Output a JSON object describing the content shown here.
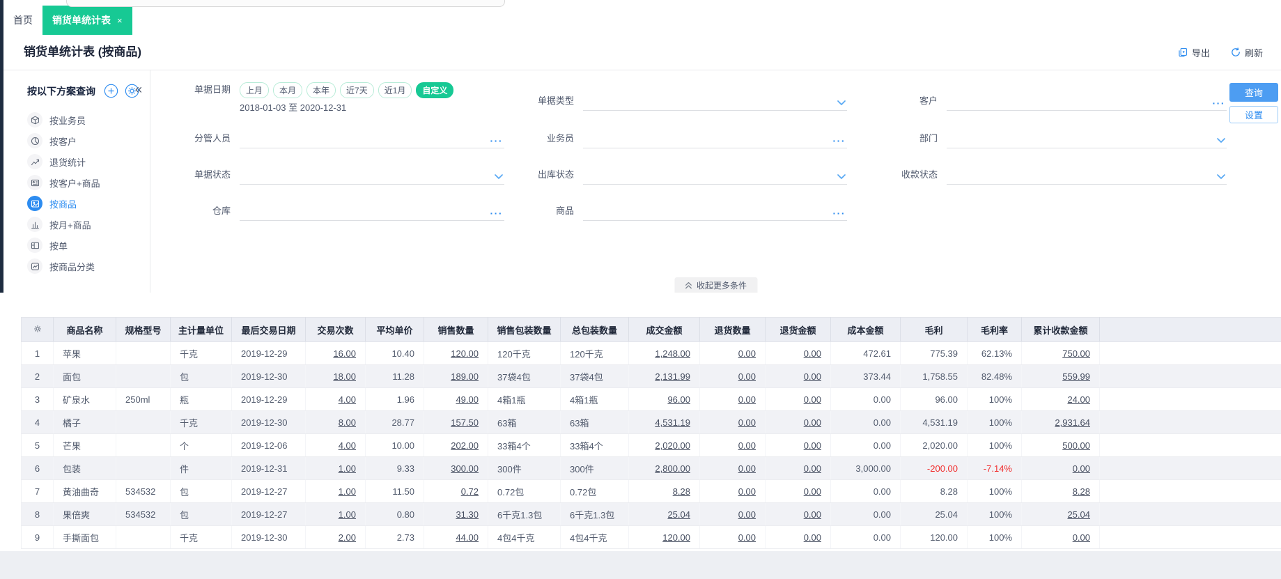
{
  "tab_bar": {
    "home_tab": "首页",
    "active_tab": "销货单统计表",
    "close_icon": "×"
  },
  "page": {
    "title": "销货单统计表 (按商品)",
    "export_label": "导出",
    "refresh_label": "刷新"
  },
  "sidebar": {
    "title": "按以下方案查询",
    "items": [
      {
        "key": "salesman",
        "label": "按业务员",
        "icon": "cube-icon",
        "active": false
      },
      {
        "key": "customer",
        "label": "按客户",
        "icon": "pie-chart-icon",
        "active": false
      },
      {
        "key": "returns-stats",
        "label": "退货统计",
        "icon": "trend-icon",
        "active": false
      },
      {
        "key": "customer-goods",
        "label": "按客户+商品",
        "icon": "id-card-icon",
        "active": false
      },
      {
        "key": "goods",
        "label": "按商品",
        "icon": "image-icon",
        "active": true
      },
      {
        "key": "month-goods",
        "label": "按月+商品",
        "icon": "bar-chart-icon",
        "active": false
      },
      {
        "key": "bill",
        "label": "按单",
        "icon": "layout-icon",
        "active": false
      },
      {
        "key": "goods-category",
        "label": "按商品分类",
        "icon": "line-chart-icon",
        "active": false
      }
    ]
  },
  "filters": {
    "date": {
      "label": "单据日期",
      "pills": [
        "上月",
        "本月",
        "本年",
        "近7天",
        "近1月"
      ],
      "custom_pill": "自定义",
      "range": "2018-01-03 至 2020-12-31"
    },
    "fields": [
      {
        "key": "manager",
        "label": "分管人员",
        "suffix": "ellipsis",
        "col": 1,
        "row": 2
      },
      {
        "key": "bill-status",
        "label": "单据状态",
        "suffix": "chevron",
        "col": 1,
        "row": 3
      },
      {
        "key": "warehouse",
        "label": "仓库",
        "suffix": "ellipsis",
        "col": 1,
        "row": 4
      },
      {
        "key": "bill-type",
        "label": "单据类型",
        "suffix": "chevron",
        "col": 2,
        "row": 1
      },
      {
        "key": "salesman",
        "label": "业务员",
        "suffix": "ellipsis",
        "col": 2,
        "row": 2
      },
      {
        "key": "outbound-status",
        "label": "出库状态",
        "suffix": "chevron",
        "col": 2,
        "row": 3
      },
      {
        "key": "goods",
        "label": "商品",
        "suffix": "ellipsis",
        "col": 2,
        "row": 4
      },
      {
        "key": "customer",
        "label": "客户",
        "suffix": "ellipsis",
        "col": 3,
        "row": 1
      },
      {
        "key": "department",
        "label": "部门",
        "suffix": "chevron",
        "col": 3,
        "row": 2
      },
      {
        "key": "payment-status",
        "label": "收款状态",
        "suffix": "chevron",
        "col": 3,
        "row": 3
      }
    ],
    "query_button": "查询",
    "settings_button": "设置",
    "collapse_label": "收起更多条件"
  },
  "table": {
    "columns": [
      {
        "key": "index",
        "label": "",
        "align": "center"
      },
      {
        "key": "goods-name",
        "label": "商品名称",
        "align": "left"
      },
      {
        "key": "spec",
        "label": "规格型号",
        "align": "left"
      },
      {
        "key": "unit",
        "label": "主计量单位",
        "align": "left"
      },
      {
        "key": "last-trade-date",
        "label": "最后交易日期",
        "align": "left"
      },
      {
        "key": "trade-count",
        "label": "交易次数",
        "align": "right",
        "link": true
      },
      {
        "key": "avg-price",
        "label": "平均单价",
        "align": "right"
      },
      {
        "key": "sales-qty",
        "label": "销售数量",
        "align": "right",
        "link": true
      },
      {
        "key": "sales-pack-qty",
        "label": "销售包装数量",
        "align": "left"
      },
      {
        "key": "total-pack-qty",
        "label": "总包装数量",
        "align": "left"
      },
      {
        "key": "deal-amount",
        "label": "成交金额",
        "align": "right",
        "link": true
      },
      {
        "key": "return-qty",
        "label": "退货数量",
        "align": "right",
        "link": true
      },
      {
        "key": "return-amount",
        "label": "退货金额",
        "align": "right",
        "link": true
      },
      {
        "key": "cost-amount",
        "label": "成本金额",
        "align": "right"
      },
      {
        "key": "gross-profit",
        "label": "毛利",
        "align": "right"
      },
      {
        "key": "gross-margin",
        "label": "毛利率",
        "align": "right"
      },
      {
        "key": "received-amount",
        "label": "累计收款金额",
        "align": "right",
        "link": true
      }
    ],
    "rows": [
      [
        "1",
        "苹果",
        "",
        "千克",
        "2019-12-29",
        "16.00",
        "10.40",
        "120.00",
        "120千克",
        "120千克",
        "1,248.00",
        "0.00",
        "0.00",
        "472.61",
        "775.39",
        "62.13%",
        "750.00"
      ],
      [
        "2",
        "面包",
        "",
        "包",
        "2019-12-30",
        "18.00",
        "11.28",
        "189.00",
        "37袋4包",
        "37袋4包",
        "2,131.99",
        "0.00",
        "0.00",
        "373.44",
        "1,758.55",
        "82.48%",
        "559.99"
      ],
      [
        "3",
        "矿泉水",
        "250ml",
        "瓶",
        "2019-12-29",
        "4.00",
        "1.96",
        "49.00",
        "4箱1瓶",
        "4箱1瓶",
        "96.00",
        "0.00",
        "0.00",
        "0.00",
        "96.00",
        "100%",
        "24.00"
      ],
      [
        "4",
        "橘子",
        "",
        "千克",
        "2019-12-30",
        "8.00",
        "28.77",
        "157.50",
        "63箱",
        "63箱",
        "4,531.19",
        "0.00",
        "0.00",
        "0.00",
        "4,531.19",
        "100%",
        "2,931.64"
      ],
      [
        "5",
        "芒果",
        "",
        "个",
        "2019-12-06",
        "4.00",
        "10.00",
        "202.00",
        "33箱4个",
        "33箱4个",
        "2,020.00",
        "0.00",
        "0.00",
        "0.00",
        "2,020.00",
        "100%",
        "500.00"
      ],
      [
        "6",
        "包装",
        "",
        "件",
        "2019-12-31",
        "1.00",
        "9.33",
        "300.00",
        "300件",
        "300件",
        "2,800.00",
        "0.00",
        "0.00",
        "3,000.00",
        "-200.00",
        "-7.14%",
        "0.00"
      ],
      [
        "7",
        "黄油曲奇",
        "534532",
        "包",
        "2019-12-27",
        "1.00",
        "11.50",
        "0.72",
        "0.72包",
        "0.72包",
        "8.28",
        "0.00",
        "0.00",
        "0.00",
        "8.28",
        "100%",
        "8.28"
      ],
      [
        "8",
        "果倍爽",
        "534532",
        "包",
        "2019-12-27",
        "1.00",
        "0.80",
        "31.30",
        "6千克1.3包",
        "6千克1.3包",
        "25.04",
        "0.00",
        "0.00",
        "0.00",
        "25.04",
        "100%",
        "25.04"
      ],
      [
        "9",
        "手撕面包",
        "",
        "千克",
        "2019-12-30",
        "2.00",
        "2.73",
        "44.00",
        "4包4千克",
        "4包4千克",
        "120.00",
        "0.00",
        "0.00",
        "0.00",
        "120.00",
        "100%",
        "0.00"
      ]
    ]
  },
  "colors": {
    "accent_green": "#17c994",
    "accent_blue": "#2d8cf0",
    "negative_red": "#f12b2b",
    "table_header_bg": "#eceef4",
    "stripe_bg": "#f1f2f6"
  }
}
